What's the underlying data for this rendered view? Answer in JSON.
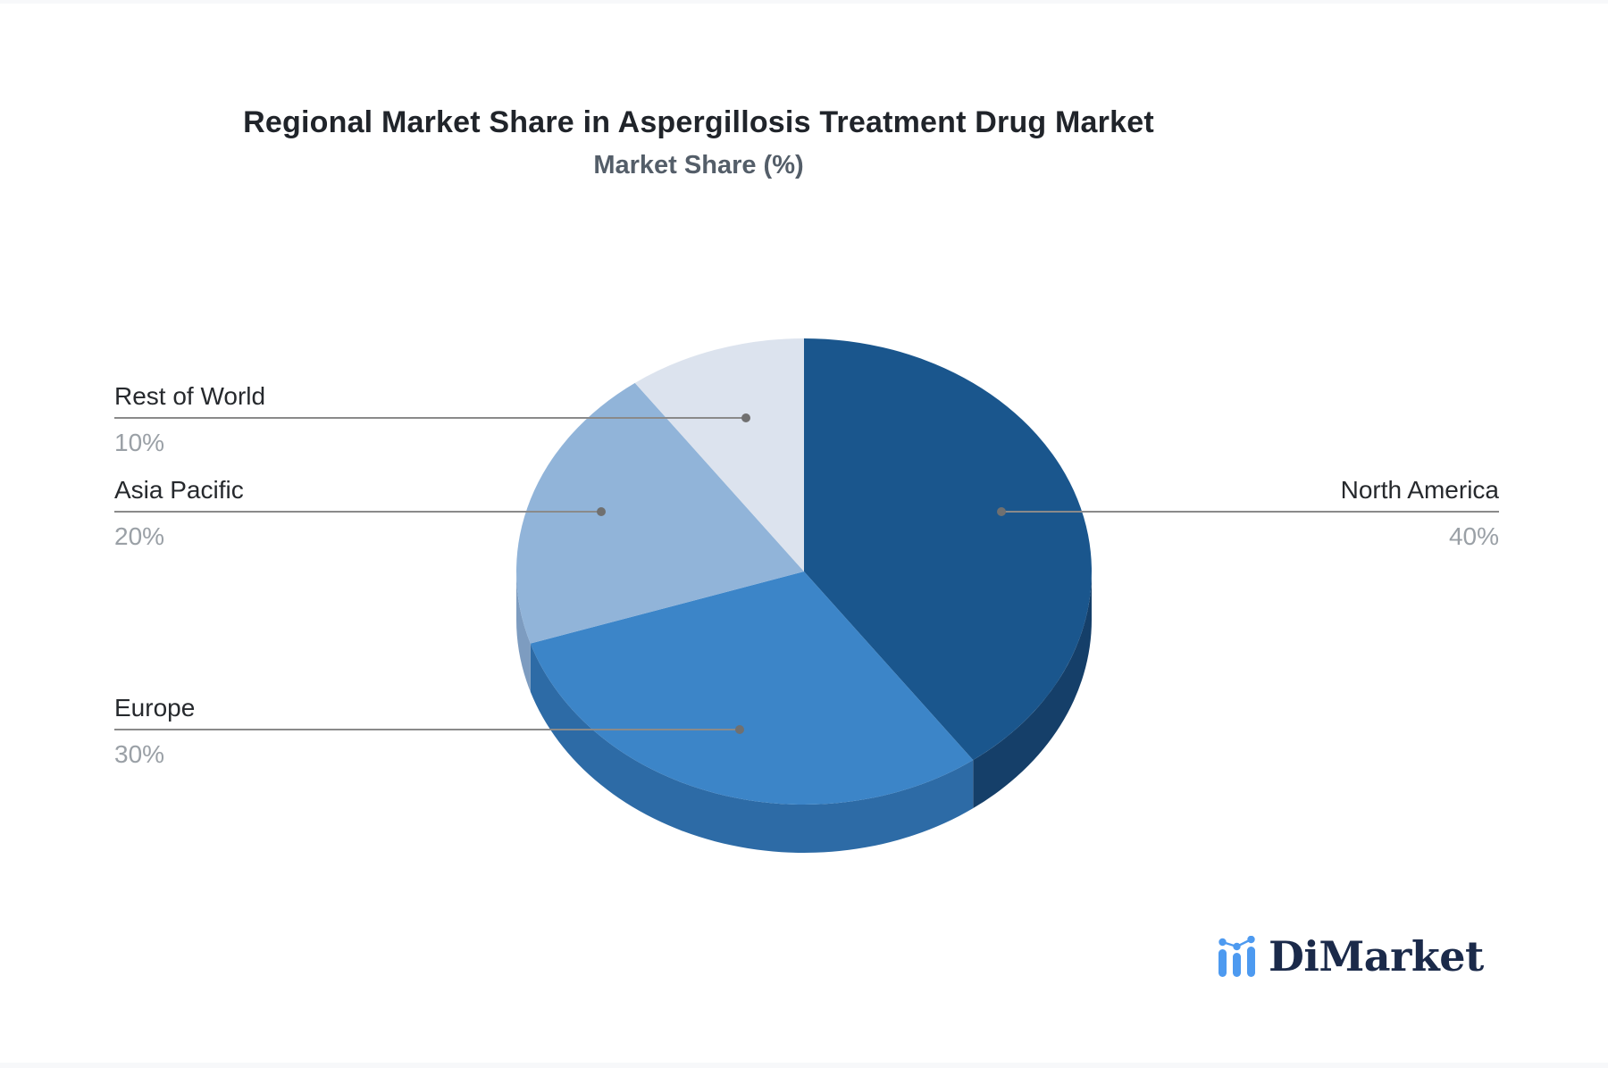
{
  "chart_data": {
    "type": "pie",
    "style": "3d-pie",
    "title": "Regional Market Share in Aspergillosis Treatment Drug Market",
    "subtitle": "Market Share (%)",
    "unit": "%",
    "categories": [
      "North America",
      "Europe",
      "Asia Pacific",
      "Rest of World"
    ],
    "values": [
      40,
      30,
      20,
      10
    ],
    "start_angle": "12-o-clock",
    "direction": "clockwise",
    "legend": "none",
    "label_layout": "horizontal-leader-lines",
    "leader_line_color": "#8a8a8a",
    "leader_dot_color": "#707070",
    "slices": [
      {
        "label": "North America",
        "value": 40,
        "display": "40%",
        "color": "#1a568d",
        "side_color": "#153f69"
      },
      {
        "label": "Europe",
        "value": 30,
        "display": "30%",
        "color": "#3c85c8",
        "side_color": "#2d6ba6"
      },
      {
        "label": "Asia Pacific",
        "value": 20,
        "display": "20%",
        "color": "#91b4d9",
        "side_color": "#7d9cc0"
      },
      {
        "label": "Rest of World",
        "value": 10,
        "display": "10%",
        "color": "#dce3ee",
        "side_color": "#c3cddd"
      }
    ]
  },
  "logo": {
    "text": "DiMarket",
    "icon": "bar-line-chart-icon",
    "text_color": "#1b2a4a",
    "icon_color": "#4d9af0"
  }
}
